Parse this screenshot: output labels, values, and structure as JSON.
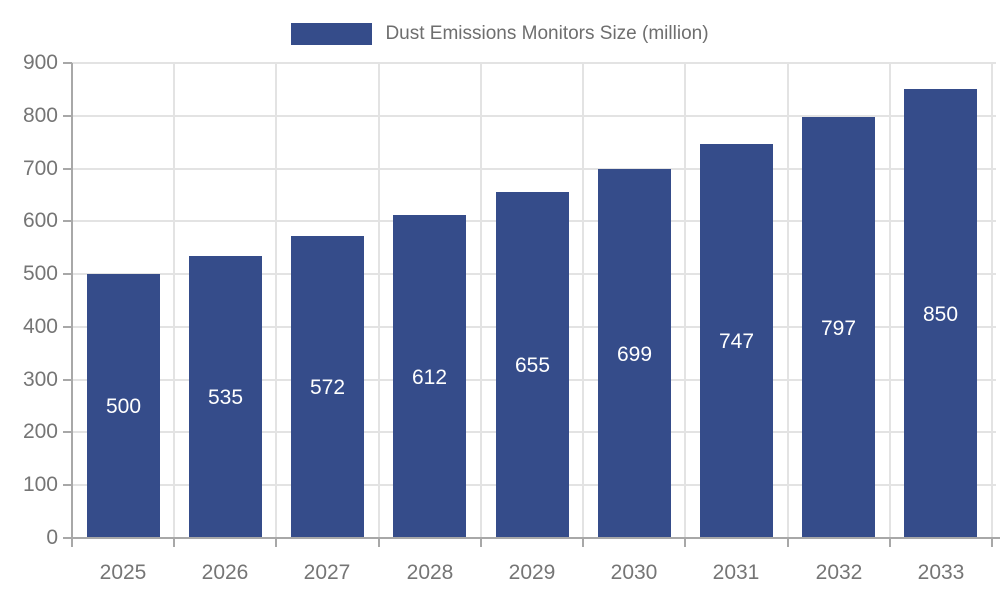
{
  "legend": {
    "label": "Dust Emissions Monitors Size (million)"
  },
  "chart_data": {
    "type": "bar",
    "title": "Dust Emissions Monitors Size (million)",
    "categories": [
      "2025",
      "2026",
      "2027",
      "2028",
      "2029",
      "2030",
      "2031",
      "2032",
      "2033"
    ],
    "values": [
      500,
      535,
      572,
      612,
      655,
      699,
      747,
      797,
      850
    ],
    "series": [
      {
        "name": "Dust Emissions Monitors Size (million)",
        "values": [
          500,
          535,
          572,
          612,
          655,
          699,
          747,
          797,
          850
        ]
      }
    ],
    "xlabel": "",
    "ylabel": "",
    "ylim": [
      0,
      900
    ],
    "ytick_step": 100,
    "grid": true,
    "legend_position": "top-center",
    "value_labels": "inside-center",
    "colors": {
      "bar": "#354C8A",
      "grid": "#E3E3E3",
      "axis": "#A8A8A8",
      "tick_label": "#757575",
      "title": "#6E6E6E",
      "value_label": "#FFFFFF"
    }
  }
}
